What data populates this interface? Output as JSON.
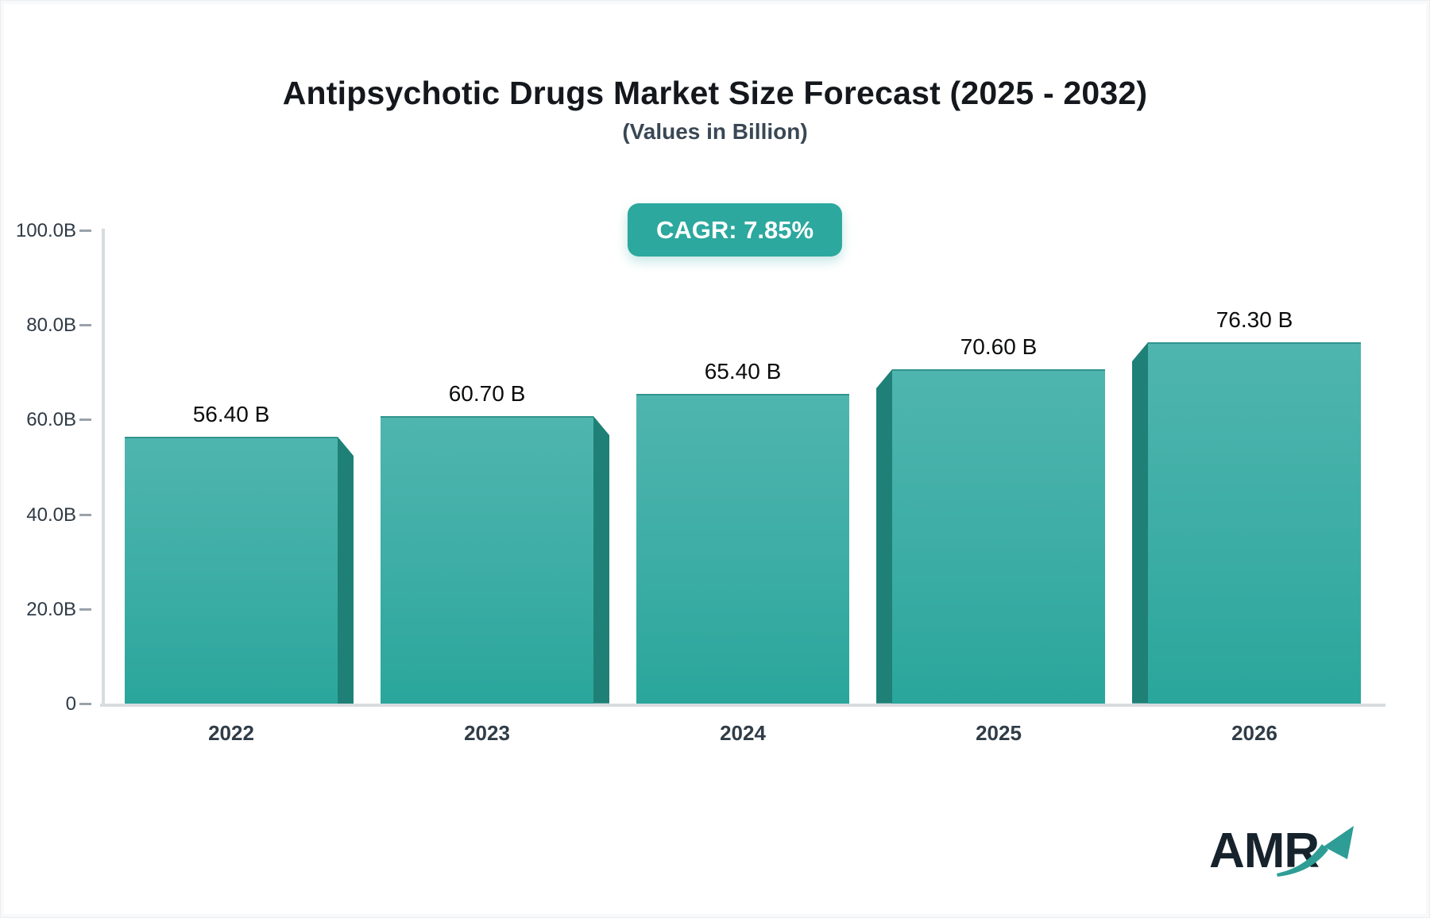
{
  "header": {
    "title": "Antipsychotic Drugs Market Size Forecast (2025 - 2032)",
    "subtitle": "(Values in Billion)"
  },
  "badge": {
    "label": "CAGR: 7.85%"
  },
  "chart_data": {
    "type": "bar",
    "title": "Antipsychotic Drugs Market Size Forecast (2025 - 2032)",
    "subtitle": "(Values in Billion)",
    "categories": [
      "2022",
      "2023",
      "2024",
      "2025",
      "2026"
    ],
    "values": [
      56.4,
      60.7,
      65.4,
      70.6,
      76.3
    ],
    "value_labels": [
      "56.40 B",
      "60.70 B",
      "65.40 B",
      "70.60 B",
      "76.30 B"
    ],
    "xlabel": "",
    "ylabel": "",
    "ylim": [
      0,
      100
    ],
    "yticks": [
      {
        "value": 0,
        "label": "0"
      },
      {
        "value": 20,
        "label": "20.0B"
      },
      {
        "value": 40,
        "label": "40.0B"
      },
      {
        "value": 60,
        "label": "60.0B"
      },
      {
        "value": 80,
        "label": "80.0B"
      },
      {
        "value": 100,
        "label": "100.0B"
      }
    ],
    "grid": "off",
    "legend": "none",
    "bar_style": "3d-extruded",
    "colors": {
      "bar_top": "#4fb5ae",
      "bar_bottom": "#2aa69b",
      "bar_side": "#1f8077",
      "badge_background": "#2ca89e",
      "axis": "#d9dcdf",
      "tick": "#9aa2aa",
      "logo_text": "#16222c",
      "logo_arrow": "#2e9d95"
    }
  },
  "logo": {
    "text": "AMR"
  }
}
